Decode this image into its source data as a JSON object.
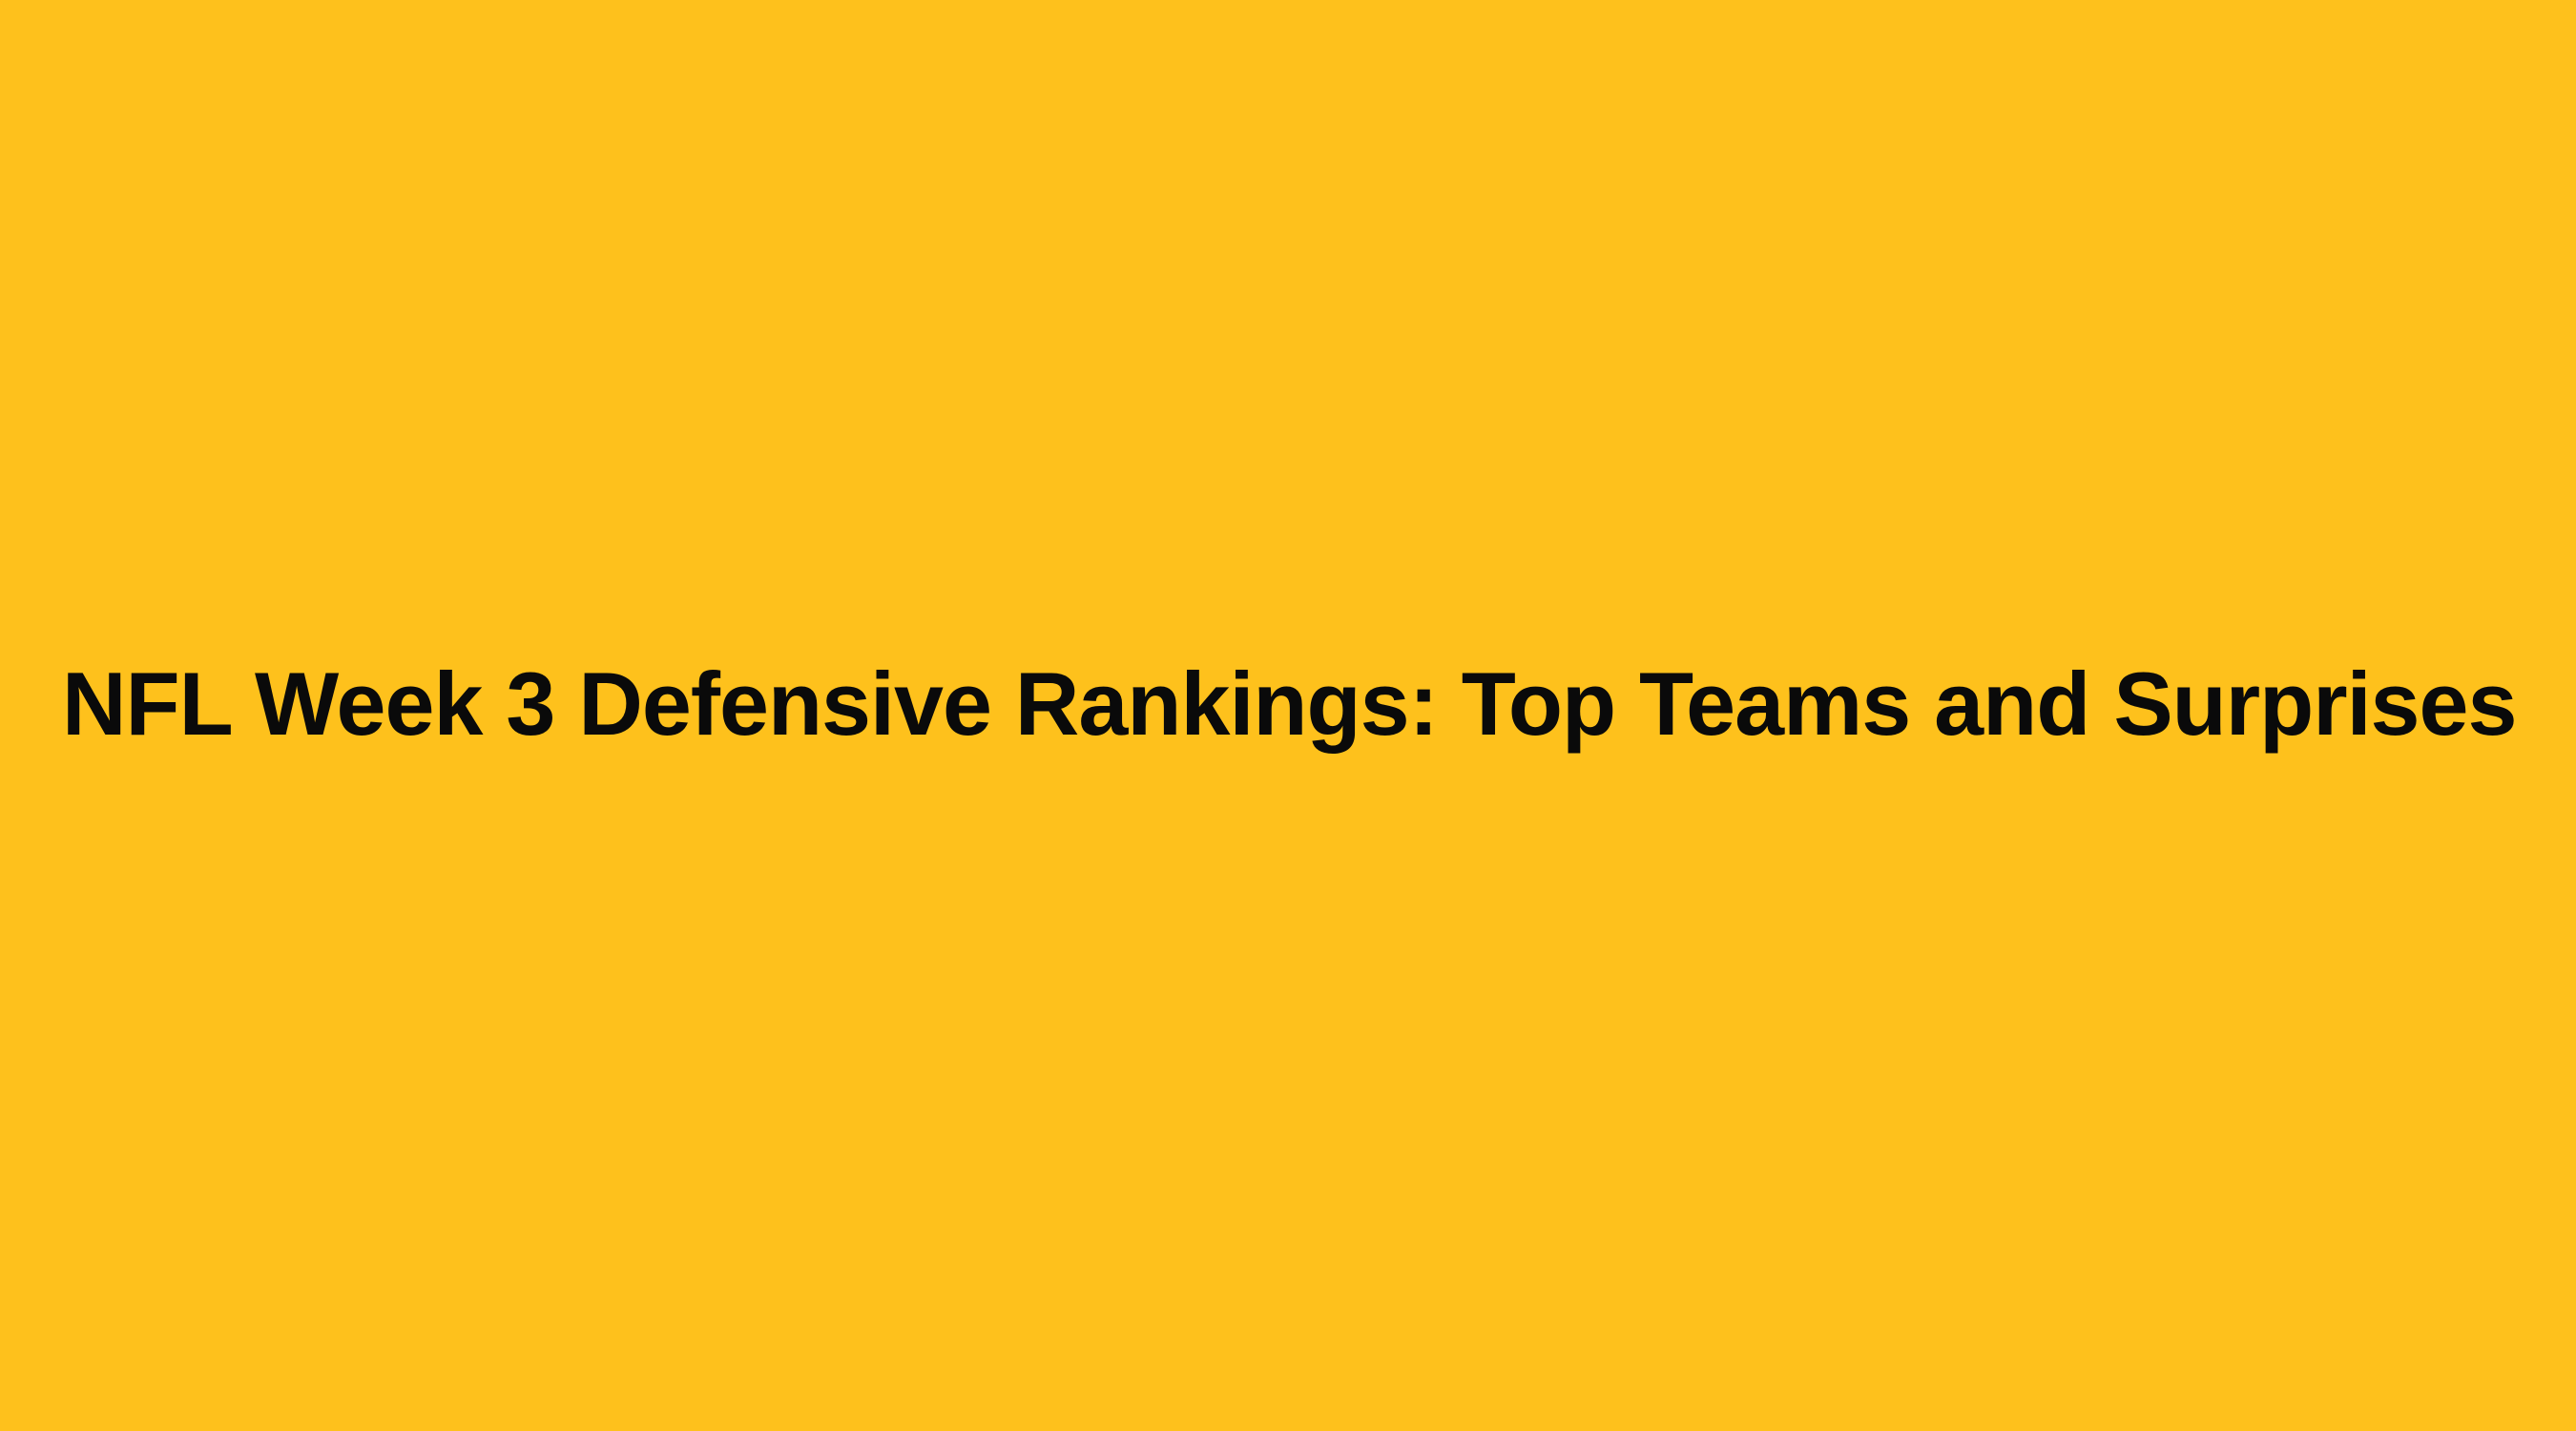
{
  "background_color": "#FEC11C",
  "text_color": "#0A0A0A",
  "headline": "NFL Week 3 Defensive Rankings: Top Teams and Surprises"
}
